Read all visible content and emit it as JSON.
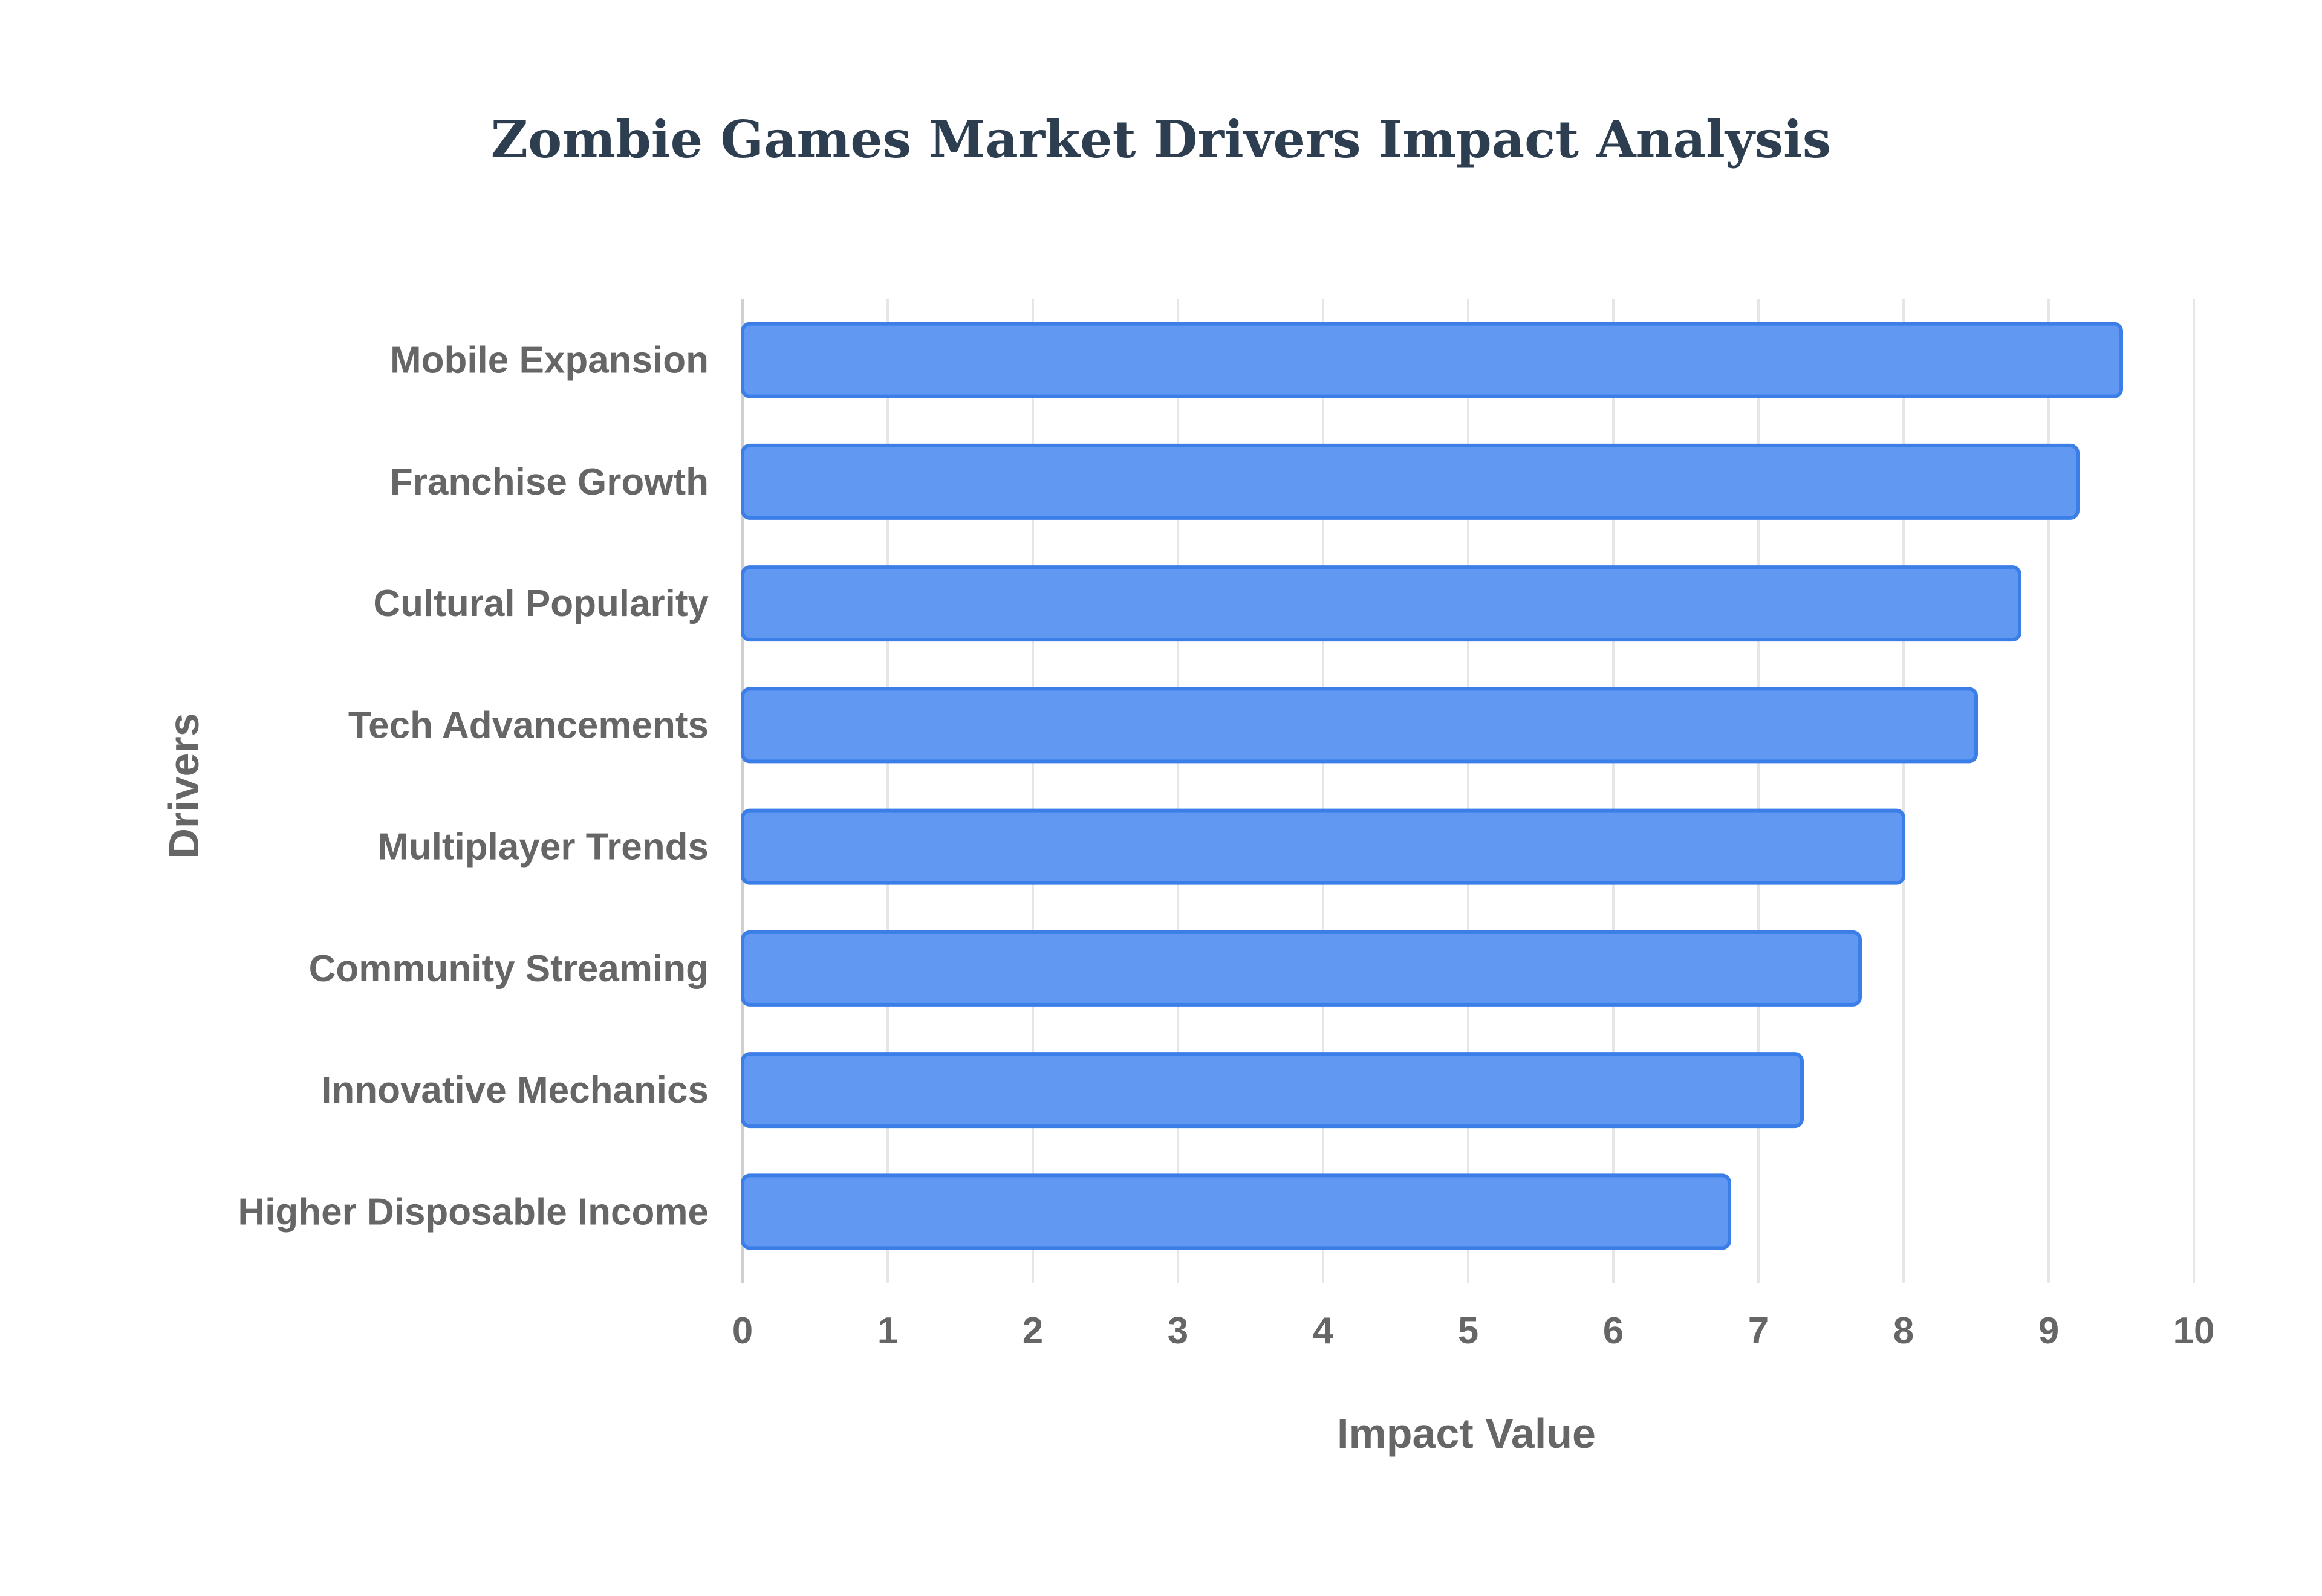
{
  "chart_data": {
    "type": "bar",
    "orientation": "horizontal",
    "title": "Zombie Games Market Drivers Impact Analysis",
    "xlabel": "Impact Value",
    "ylabel": "Drivers",
    "categories": [
      "Mobile Expansion",
      "Franchise Growth",
      "Cultural Popularity",
      "Tech Advancements",
      "Multiplayer Trends",
      "Community Streaming",
      "Innovative Mechanics",
      "Higher Disposable Income"
    ],
    "values": [
      9.5,
      9.2,
      8.8,
      8.5,
      8.0,
      7.7,
      7.3,
      6.8
    ],
    "xlim": [
      0,
      10
    ],
    "xticks": [
      "0",
      "1",
      "2",
      "3",
      "4",
      "5",
      "6",
      "7",
      "8",
      "9",
      "10"
    ],
    "grid": true,
    "legend": "none",
    "colors": {
      "bar_fill": "#6199f2",
      "bar_stroke": "#3b7ee8"
    }
  }
}
